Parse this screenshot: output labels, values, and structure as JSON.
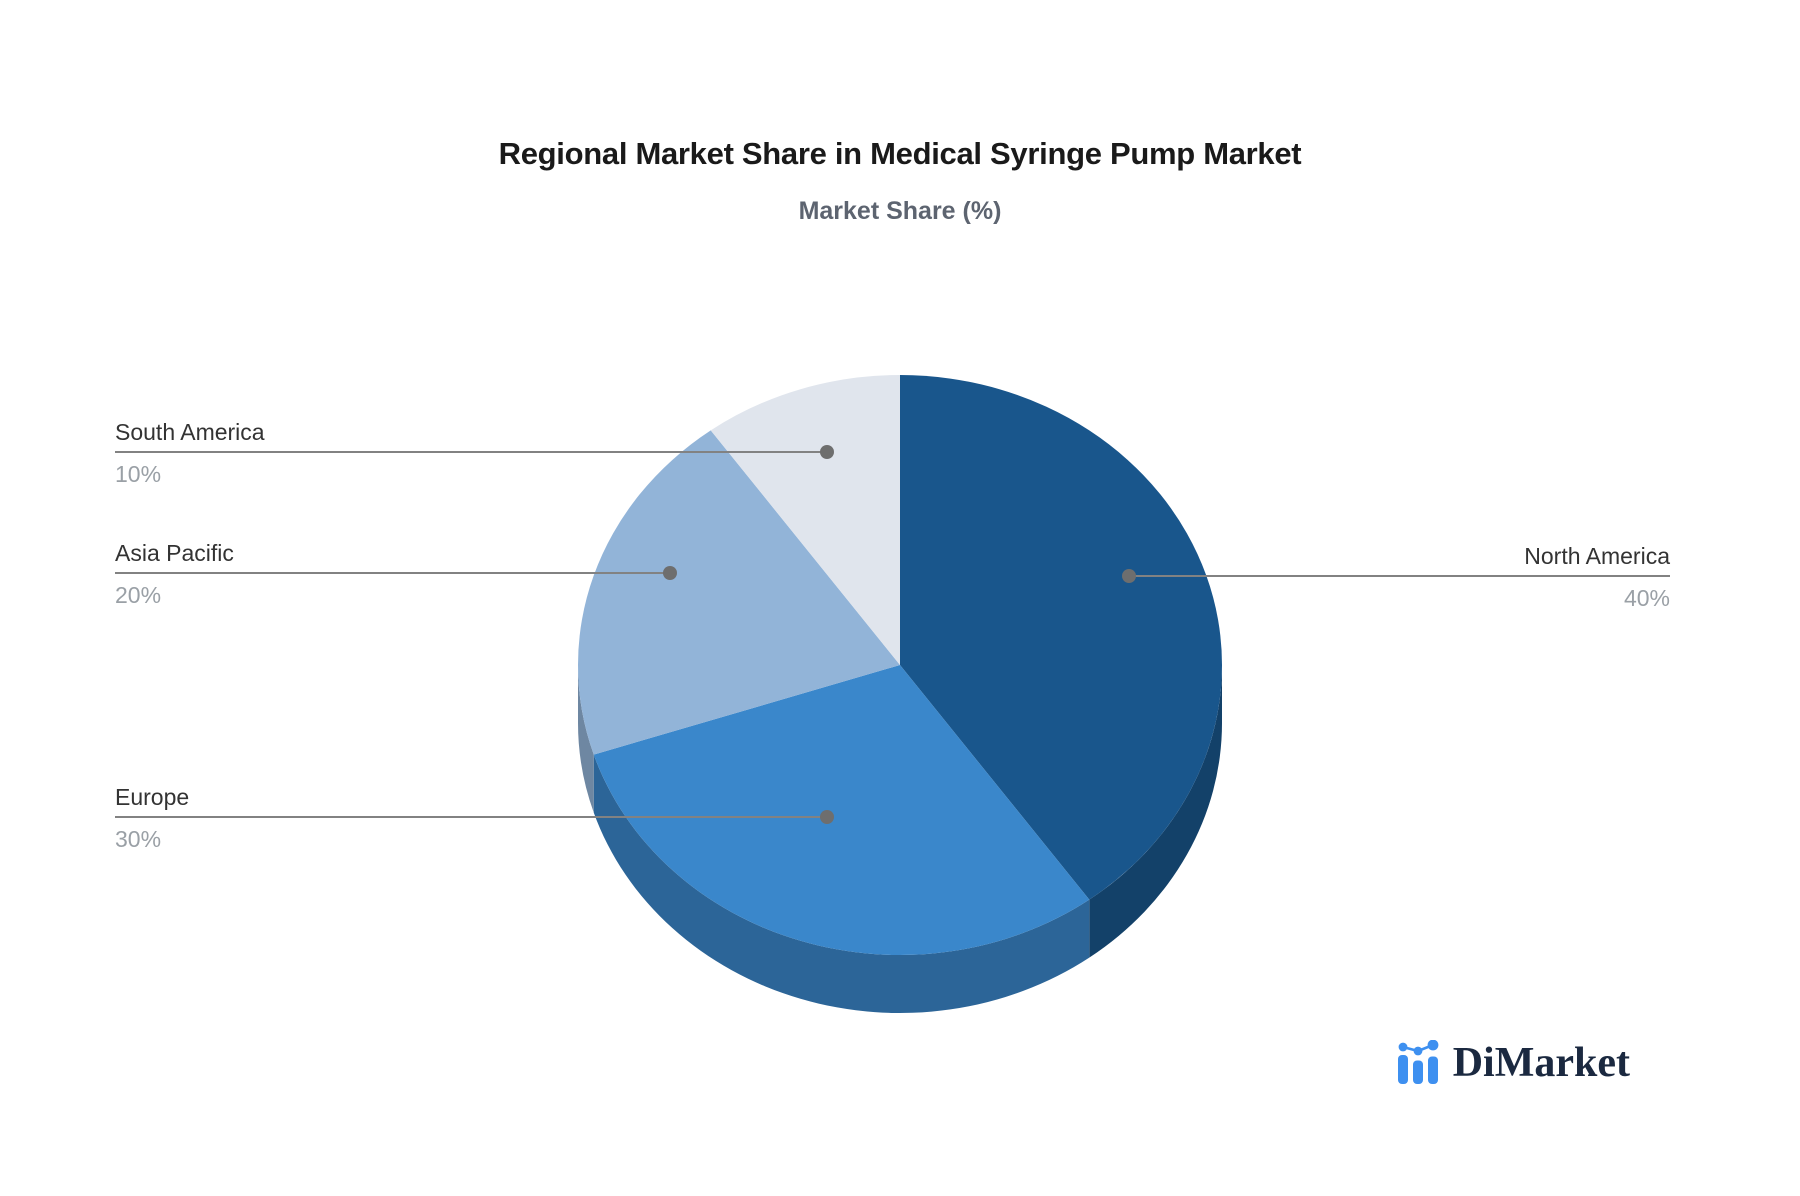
{
  "chart_data": {
    "type": "pie",
    "style_3d": true,
    "title": "Regional Market Share in Medical Syringe Pump Market",
    "subtitle": "Market Share (%)",
    "unit": "%",
    "start_angle_deg": 0,
    "direction": "clockwise",
    "legend_position": "callout-labels",
    "slices": [
      {
        "label": "North America",
        "value": 40,
        "pct_label": "40%",
        "color": "#19568C",
        "callout_side": "right"
      },
      {
        "label": "Europe",
        "value": 30,
        "pct_label": "30%",
        "color": "#3A87CB",
        "callout_side": "left"
      },
      {
        "label": "Asia Pacific",
        "value": 20,
        "pct_label": "20%",
        "color": "#92B4D8",
        "callout_side": "left"
      },
      {
        "label": "South America",
        "value": 10,
        "pct_label": "10%",
        "color": "#E0E5ED",
        "callout_side": "left"
      }
    ]
  },
  "branding": {
    "logo_text": "DiMarket",
    "logo_icon": "bar-line-chart-icon"
  },
  "theme": {
    "background": "#FFFFFF",
    "title_color": "#1A1A1A",
    "subtitle_color": "#5D6470",
    "label_color": "#333333",
    "pct_color": "#9AA0A6",
    "leader_line_color": "#828282",
    "leader_dot_color": "#6E6E6E",
    "side_shade_factor": 0.75,
    "logo_text_color": "#1B2940",
    "logo_accent_color": "#3E90F0"
  }
}
